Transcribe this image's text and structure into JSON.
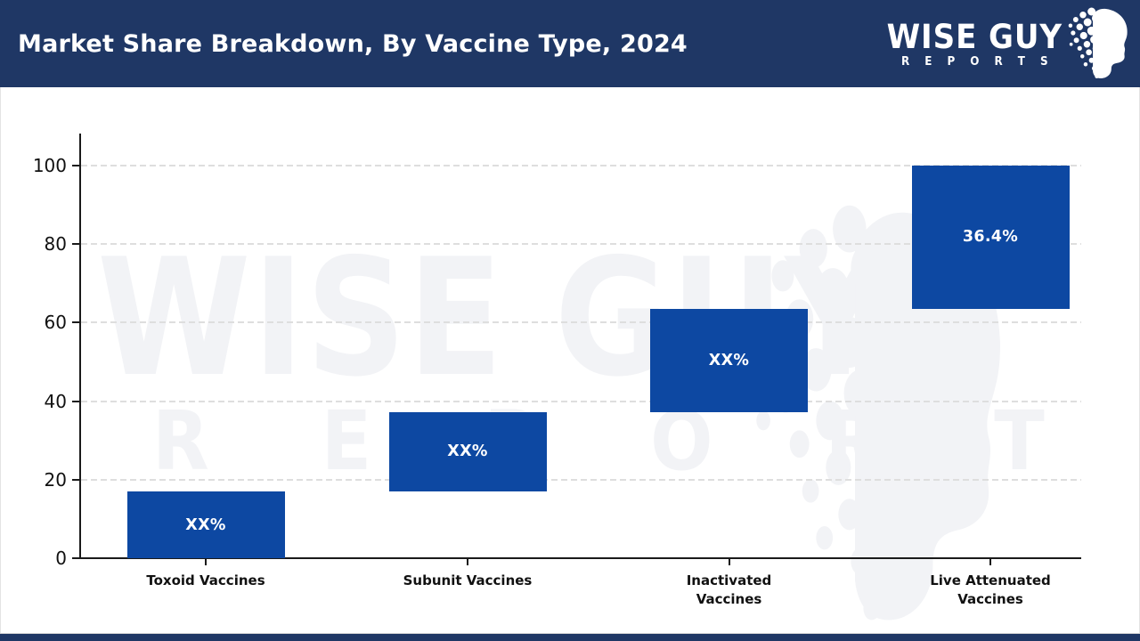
{
  "header": {
    "title": "Market Share Breakdown, By Vaccine Type, 2024",
    "bg_color": "#1F3765",
    "brand": {
      "primary": "WISE GUY",
      "secondary": "R E P O R T S"
    }
  },
  "watermark": {
    "primary": "WISE GUY",
    "secondary": "R E P O R T S"
  },
  "chart_data": {
    "type": "bar",
    "subtype": "waterfall",
    "title": "Market Share Breakdown, By Vaccine Type, 2024",
    "categories": [
      "Toxoid Vaccines",
      "Subunit Vaccines",
      "Inactivated\nVaccines",
      "Live Attenuated\nVaccines"
    ],
    "bars": [
      {
        "category": "Toxoid Vaccines",
        "start": 0,
        "end": 17,
        "value": 17,
        "label": "XX%"
      },
      {
        "category": "Subunit Vaccines",
        "start": 17,
        "end": 37.2,
        "value": 20.2,
        "label": "XX%"
      },
      {
        "category": "Inactivated Vaccines",
        "start": 37.2,
        "end": 63.6,
        "value": 26.4,
        "label": "XX%"
      },
      {
        "category": "Live Attenuated Vaccines",
        "start": 63.6,
        "end": 100,
        "value": 36.4,
        "label": "36.4%"
      }
    ],
    "y_ticks": [
      0,
      20,
      40,
      60,
      80,
      100
    ],
    "ylim": [
      0,
      108
    ],
    "xlabel": "",
    "ylabel": "",
    "grid": true,
    "grid_style": "dashed",
    "legend": "none",
    "bar_color": "#0D48A2",
    "bar_label_color": "#FFFFFF",
    "axis_color": "#1A1A1A",
    "grid_color": "#DEDEDE"
  }
}
